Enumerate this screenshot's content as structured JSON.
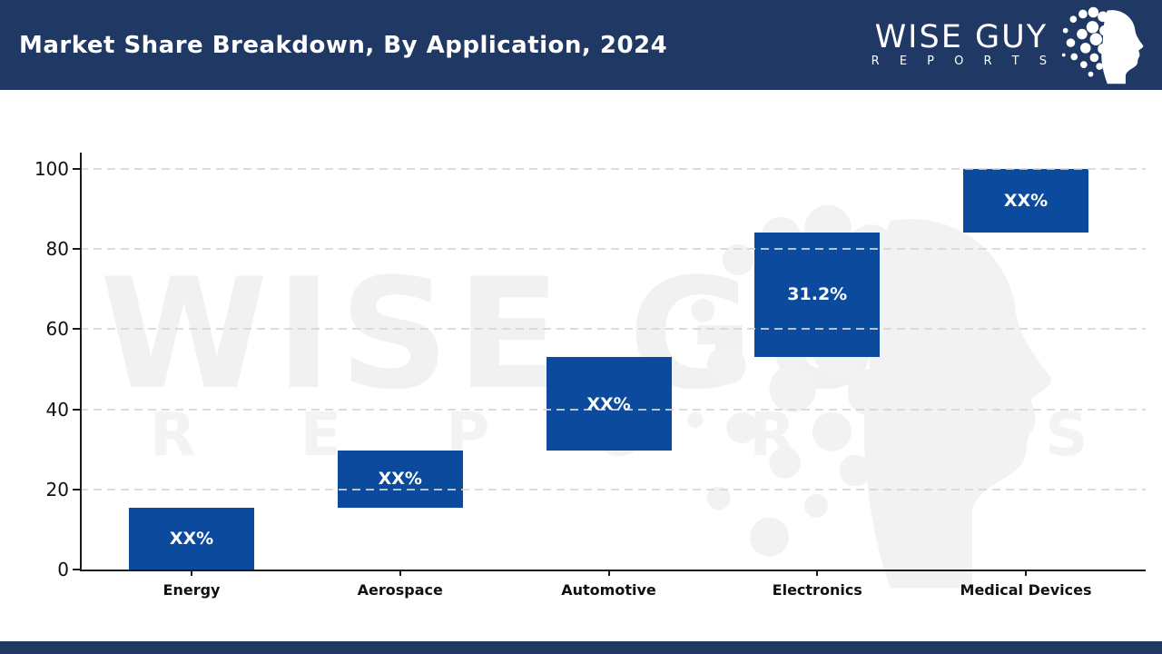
{
  "header": {
    "title": "Market Share Breakdown, By Application, 2024",
    "bg_color": "#203864",
    "logo": {
      "line1": "WISE GUY",
      "line2": "R E P O R T S"
    }
  },
  "watermark": {
    "line1": "WISE GUY",
    "line2": "R E P O R T S"
  },
  "chart_data": {
    "type": "bar",
    "subtype": "floating-waterfall",
    "title": "Market Share Breakdown, By Application, 2024",
    "xlabel": "",
    "ylabel": "",
    "ylim": [
      0,
      100
    ],
    "yticks": [
      0,
      20,
      40,
      60,
      80,
      100
    ],
    "grid": "horizontal-dashed",
    "legend": "none",
    "bar_color": "#0b4a9c",
    "bar_label_color": "#ffffff",
    "categories": [
      "Energy",
      "Aerospace",
      "Automotive",
      "Electronics",
      "Medical Devices"
    ],
    "segments": [
      {
        "category": "Energy",
        "start": 0,
        "end": 15.5,
        "label": "XX%"
      },
      {
        "category": "Aerospace",
        "start": 15.5,
        "end": 29.7,
        "label": "XX%"
      },
      {
        "category": "Automotive",
        "start": 29.7,
        "end": 53.0,
        "label": "XX%"
      },
      {
        "category": "Electronics",
        "start": 53.0,
        "end": 84.2,
        "label": "31.2%"
      },
      {
        "category": "Medical Devices",
        "start": 84.2,
        "end": 100,
        "label": "XX%"
      }
    ]
  }
}
